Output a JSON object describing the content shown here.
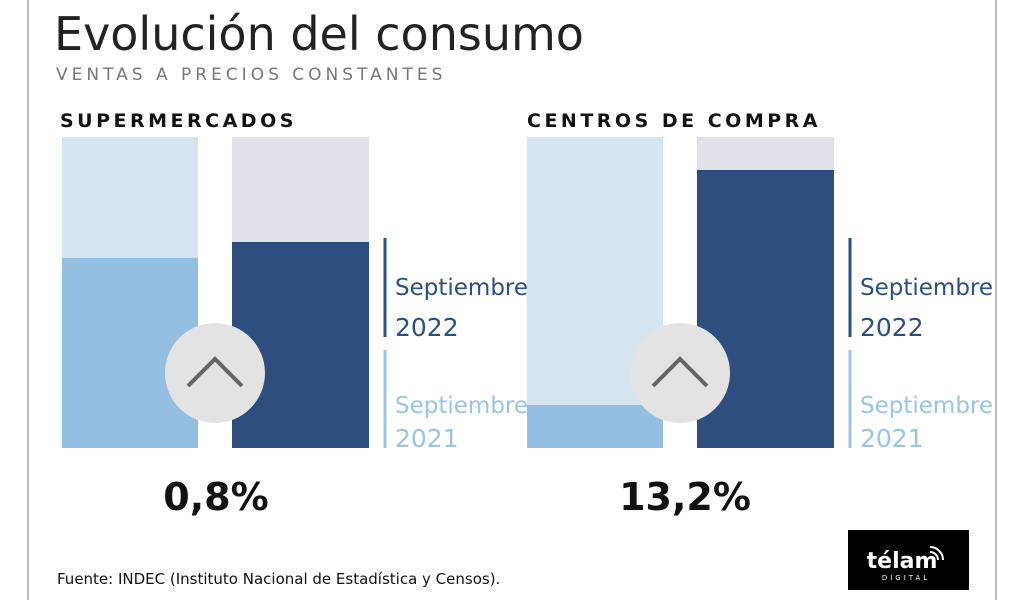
{
  "header": {
    "title": "Evolución del consumo",
    "subtitle": "VENTAS A PRECIOS CONSTANTES"
  },
  "panels": [
    {
      "heading": "SUPERMERCADOS",
      "legend": [
        {
          "month": "Septiembre",
          "year": "2022"
        },
        {
          "month": "Septiembre",
          "year": "2021"
        }
      ],
      "change": "0,8%"
    },
    {
      "heading": "CENTROS DE COMPRA",
      "legend": [
        {
          "month": "Septiembre",
          "year": "2022"
        },
        {
          "month": "Septiembre",
          "year": "2021"
        }
      ],
      "change": "13,2%"
    }
  ],
  "source": "Fuente: INDEC (Instituto Nacional de Estadística y Censos).",
  "logo": {
    "name": "télam",
    "tagline": "DIGITAL"
  }
}
